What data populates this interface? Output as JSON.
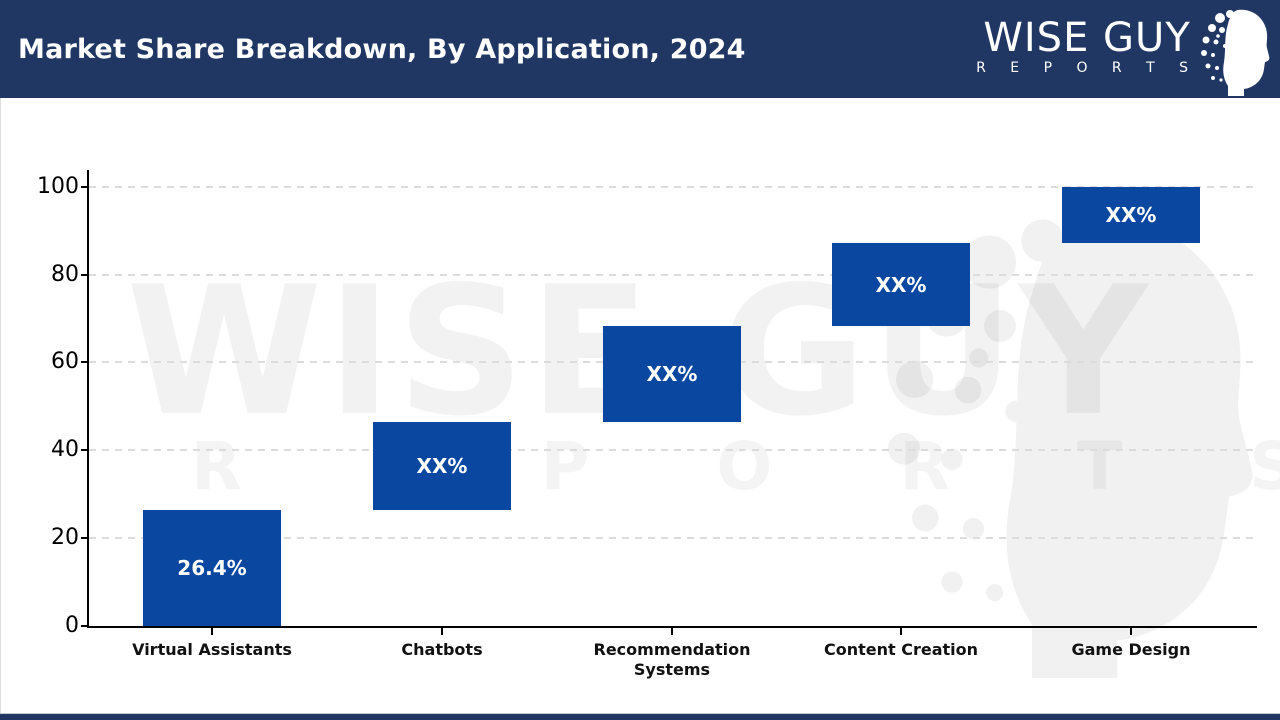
{
  "header": {
    "title": "Market Share Breakdown, By Application, 2024",
    "logo": {
      "line1": "WISE GUY",
      "line2": "R E P O R T S"
    }
  },
  "watermark": {
    "line1": "WISE GUY",
    "line2": "R E P O R T S"
  },
  "colors": {
    "header_bg": "#213763",
    "footer_bg": "#213763",
    "bar": "#0a47a0",
    "bar_label": "#ffffff",
    "grid": "#dcdcdc",
    "axis": "#000000"
  },
  "chart_data": {
    "type": "bar",
    "subtype": "waterfall",
    "title": "Market Share Breakdown, By Application, 2024",
    "xlabel": "",
    "ylabel": "",
    "categories": [
      "Virtual Assistants",
      "Chatbots",
      "Recommendation Systems",
      "Content Creation",
      "Game Design"
    ],
    "bars": [
      {
        "category": "Virtual Assistants",
        "start": 0,
        "end": 26.4,
        "label": "26.4%"
      },
      {
        "category": "Chatbots",
        "start": 26.4,
        "end": 46.4,
        "label": "XX%"
      },
      {
        "category": "Recommendation Systems",
        "start": 46.4,
        "end": 68.2,
        "label": "XX%"
      },
      {
        "category": "Content Creation",
        "start": 68.2,
        "end": 87.1,
        "label": "XX%"
      },
      {
        "category": "Game Design",
        "start": 87.1,
        "end": 100.0,
        "label": "XX%"
      }
    ],
    "yticks": [
      0,
      20,
      40,
      60,
      80,
      100
    ],
    "ylim": [
      0,
      107
    ],
    "grid": "horizontal-dashed",
    "legend": "none"
  }
}
